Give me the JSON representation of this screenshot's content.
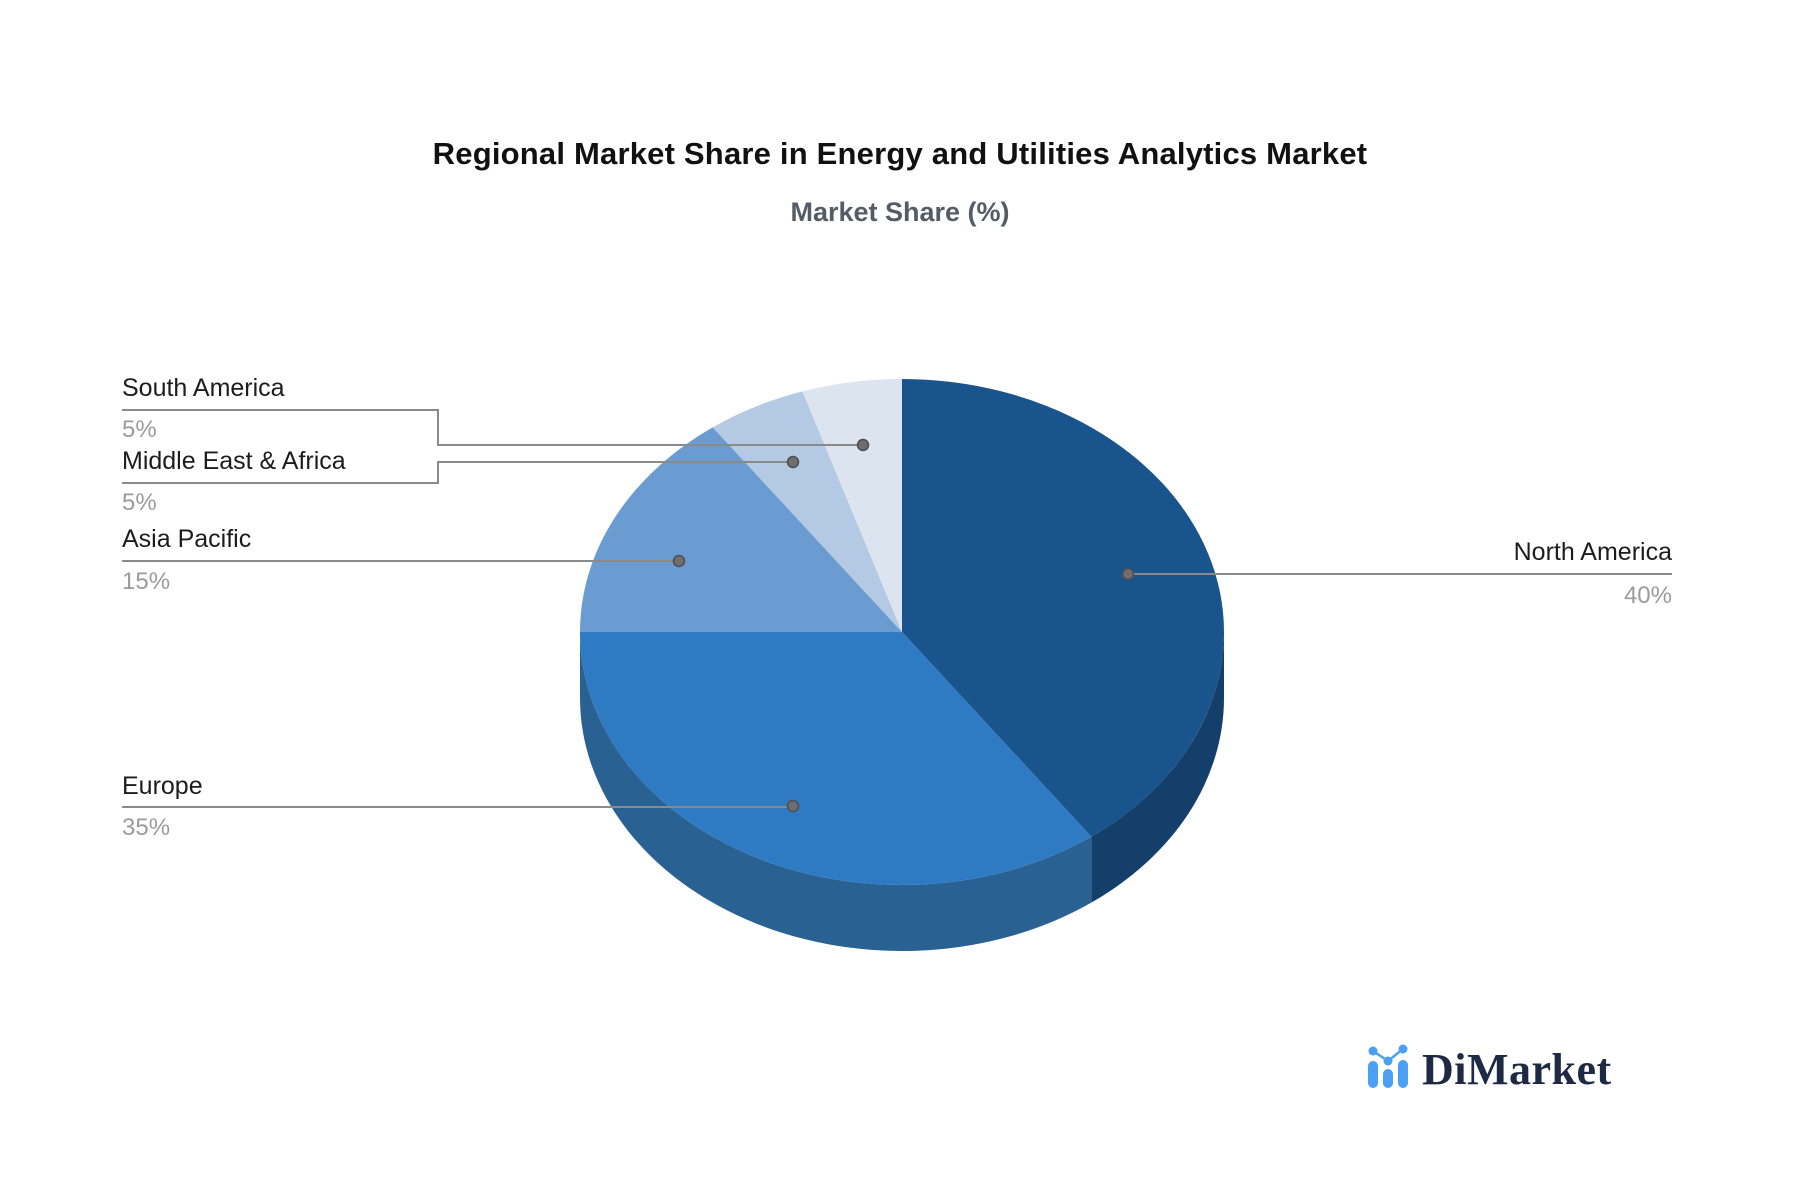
{
  "chart_data": {
    "type": "pie",
    "title": "Regional Market Share in Energy and Utilities Analytics Market",
    "subtitle": "Market Share (%)",
    "unit": "%",
    "direction": "clockwise",
    "start_angle_deg": 0,
    "style": "3d",
    "legend_position": "none",
    "slices": [
      {
        "label": "North America",
        "value": 40,
        "pct_label": "40%",
        "color": "#1A548C",
        "side_color": "#153F6B"
      },
      {
        "label": "Europe",
        "value": 35,
        "pct_label": "35%",
        "color": "#2F7BC3",
        "side_color": "#296192"
      },
      {
        "label": "Asia Pacific",
        "value": 15,
        "pct_label": "15%",
        "color": "#6A9CD2",
        "side_color": "#527DAA"
      },
      {
        "label": "Middle East & Africa",
        "value": 5,
        "pct_label": "5%",
        "color": "#B3C9E4",
        "side_color": "#8FA5BF"
      },
      {
        "label": "South America",
        "value": 5,
        "pct_label": "5%",
        "color": "#DCE4EF",
        "side_color": "#B5BFCE"
      }
    ]
  },
  "branding": {
    "logo_text": "DiMarket",
    "logo_icon": "bar-line-chart-icon",
    "icon_color": "#4BA0F4",
    "text_color": "#1E2A44"
  },
  "colors": {
    "background": "#FFFFFF",
    "title_text": "#111111",
    "subtitle_text": "#545C66",
    "label_text": "#1C1C1C",
    "pct_text": "#9B9B9B",
    "leader_line": "#8A8A8A",
    "leader_dot": "#6E6E6E"
  }
}
